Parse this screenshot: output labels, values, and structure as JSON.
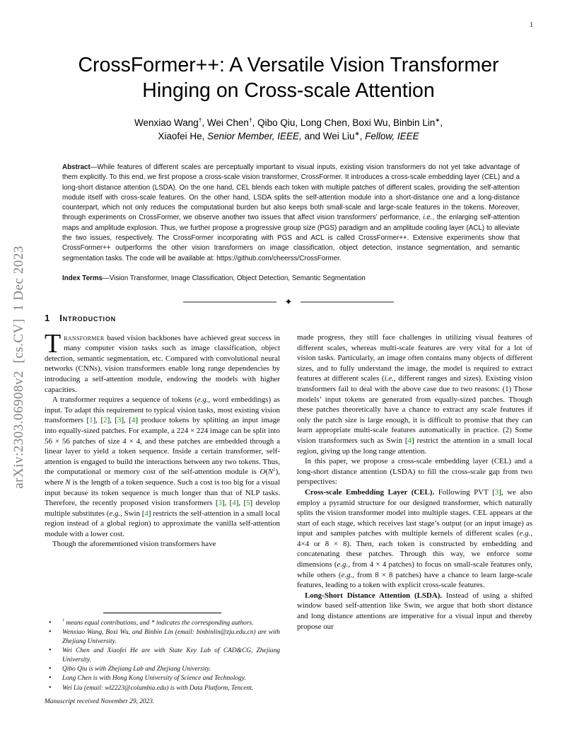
{
  "page": {
    "number": "1"
  },
  "arxiv_label": "arXiv:2303.06908v2  [cs.CV]  1 Dec 2023",
  "title": {
    "line1": "CrossFormer++: A Versatile Vision Transformer",
    "line2": "Hinging on Cross-scale Attention"
  },
  "authors": {
    "line1": [
      {
        "t": "Wenxiao Wang"
      },
      {
        "t": "†",
        "c": "sup"
      },
      {
        "t": ", Wei Chen"
      },
      {
        "t": "†",
        "c": "sup"
      },
      {
        "t": ", Qibo Qiu, Long Chen, Boxi Wu, Binbin Lin"
      },
      {
        "t": "∗",
        "c": "sup"
      },
      {
        "t": ","
      }
    ],
    "line2": [
      {
        "t": "Xiaofei He, "
      },
      {
        "t": "Senior Member, IEEE,",
        "c": "it"
      },
      {
        "t": " and Wei Liu"
      },
      {
        "t": "∗",
        "c": "sup"
      },
      {
        "t": ", "
      },
      {
        "t": "Fellow, IEEE",
        "c": "it"
      }
    ]
  },
  "abstract": {
    "segments": [
      {
        "t": "Abstract",
        "c": "b"
      },
      {
        "t": "—While features of different scales are perceptually important to visual inputs, existing vision transformers do not yet take advantage of them explicitly. To this end, we first propose a cross-scale vision transformer, CrossFormer. It introduces a cross-scale embedding layer (CEL) and a long-short distance attention (LSDA). On the one hand, CEL blends each token with multiple patches of different scales, providing the self-attention module itself with cross-scale features. On the other hand, LSDA splits the self-attention module into a short-distance one and a long-distance counterpart, which not only reduces the computational burden but also keeps both small-scale and large-scale features in the tokens. Moreover, through experiments on CrossFormer, we observe another two issues that affect vision transformers’ performance, "
      },
      {
        "t": "i.e.",
        "c": "it"
      },
      {
        "t": ", the enlarging self-attention maps and amplitude explosion. Thus, we further propose a progressive group size (PGS) paradigm and an amplitude cooling layer (ACL) to alleviate the two issues, respectively. The CrossFormer incorporating with PGS and ACL is called CrossFormer++. Extensive experiments show that CrossFormer++ outperforms the other vision transformers on image classification, object detection, instance segmentation, and semantic segmentation tasks. The code will be available at: https://github.com/cheerss/CrossFormer."
      }
    ]
  },
  "index_terms": {
    "segments": [
      {
        "t": "Index Terms",
        "c": "b"
      },
      {
        "t": "—Vision Transformer, Image Classification, Object Detection, Semantic Segmentation"
      }
    ]
  },
  "separator": {
    "diamond": "✦"
  },
  "section1": {
    "number": "1",
    "title": "Introduction"
  },
  "intro": {
    "p1": [
      {
        "t": "T",
        "c": "dropcap"
      },
      {
        "t": "ransformer",
        "c": "sc"
      },
      {
        "t": " based vision backbones have achieved great success in many computer vision tasks such as image classification, object detection, semantic segmentation, etc. Compared with convolutional neural networks (CNNs), vision transformers enable long range dependencies by introducing a self-attention module, endowing the models with higher capacities."
      }
    ],
    "p2": [
      {
        "t": "A transformer requires a sequence of tokens ("
      },
      {
        "t": "e.g.",
        "c": "it"
      },
      {
        "t": ", word embeddings) as input. To adapt this requirement to typical vision tasks, most existing vision transformers ["
      },
      {
        "t": "1",
        "c": "cite"
      },
      {
        "t": "], ["
      },
      {
        "t": "2",
        "c": "cite"
      },
      {
        "t": "], ["
      },
      {
        "t": "3",
        "c": "cite"
      },
      {
        "t": "], ["
      },
      {
        "t": "4",
        "c": "cite"
      },
      {
        "t": "] produce tokens by splitting an input image into equally-sized patches. For example, a 224 × 224 image can be split into 56 × 56 patches of size 4 × 4, and these patches are embedded through a linear layer to yield a token sequence. Inside a certain transformer, self-attention is engaged to build the interactions between any two tokens. Thus, the computational or memory cost of the self-attention module is "
      },
      {
        "t": "O",
        "c": "it"
      },
      {
        "t": "("
      },
      {
        "t": "N",
        "c": "it"
      },
      {
        "t": "2",
        "c": "sup"
      },
      {
        "t": "), where "
      },
      {
        "t": "N",
        "c": "it"
      },
      {
        "t": " is the length of a token sequence. Such a cost is too big for a visual input because its token sequence is much longer than that of NLP tasks. Therefore, the recently proposed vision transformers ["
      },
      {
        "t": "3",
        "c": "cite"
      },
      {
        "t": "], ["
      },
      {
        "t": "4",
        "c": "cite"
      },
      {
        "t": "], ["
      },
      {
        "t": "5",
        "c": "cite"
      },
      {
        "t": "] develop multiple substitutes ("
      },
      {
        "t": "e.g.",
        "c": "it"
      },
      {
        "t": ", Swin ["
      },
      {
        "t": "4",
        "c": "cite"
      },
      {
        "t": "] restricts the self-attention in a small local region instead of a global region) to approximate the vanilla self-attention module with a lower cost."
      }
    ],
    "p3": [
      {
        "t": "Though the aforementioned vision transformers have"
      }
    ],
    "p4": [
      {
        "t": "made progress, they still face challenges in utilizing visual features of different scales, whereas multi-scale features are very vital for a lot of vision tasks. Particularly, an image often contains many objects of different sizes, and to fully understand the image, the model is required to extract features at different scales ("
      },
      {
        "t": "i.e.",
        "c": "it"
      },
      {
        "t": ", different ranges and sizes). Existing vision transformers fail to deal with the above case due to two reasons: (1) Those models’ input tokens are generated from equally-sized patches. Though these patches theoretically have a chance to extract any scale features if only the patch size is large enough, it is difficult to promise that they can learn appropriate multi-scale features automatically in practice. (2) Some vision transformers such as Swin ["
      },
      {
        "t": "4",
        "c": "cite"
      },
      {
        "t": "] restrict the attention in a small local region, giving up the long range attention."
      }
    ],
    "p5": [
      {
        "t": "In this paper, we propose a cross-scale embedding layer (CEL) and a long-short distance attention (LSDA) to fill the cross-scale gap from two perspectives:"
      }
    ],
    "p6": [
      {
        "t": "Cross-scale Embedding Layer (CEL).",
        "c": "b"
      },
      {
        "t": " Following PVT ["
      },
      {
        "t": "3",
        "c": "cite"
      },
      {
        "t": "], we also employ a pyramid structure for our designed transformer, which naturally splits the vision transformer model into multiple stages. CEL appears at the start of each stage, which receives last stage’s output (or an input image) as input and samples patches with multiple kernels of different scales ("
      },
      {
        "t": "e.g.",
        "c": "it"
      },
      {
        "t": ", 4×4 or 8 × 8). Then, each token is constructed by embedding and concatenating these patches. Through this way, we enforce some dimensions ("
      },
      {
        "t": "e.g.",
        "c": "it"
      },
      {
        "t": ", from 4 × 4 patches) to focus on small-scale features only, while others ("
      },
      {
        "t": "e.g.",
        "c": "it"
      },
      {
        "t": ", from 8 × 8 patches) have a chance to learn large-scale features, leading to a token with explicit cross-scale features."
      }
    ],
    "p7": [
      {
        "t": "Long-Short Distance Attention (LSDA).",
        "c": "b"
      },
      {
        "t": " Instead of using a shifted window based self-attention like Swin, we argue that both short distance and long distance attentions are imperative for a visual input and thereby propose our"
      }
    ]
  },
  "footnotes": {
    "items": [
      [
        {
          "t": "†",
          "c": "sup"
        },
        {
          "t": " means equal contributions, and * indicates the corresponding authors."
        }
      ],
      [
        {
          "t": "Wenxiao Wang, Boxi Wu, and Binbin Lin (email: binbinlin@zju.edu.cn) are with Zhejiang University."
        }
      ],
      [
        {
          "t": "Wei Chen and Xiaofei He are with State Key Lab of CAD&CG, Zhejiang University."
        }
      ],
      [
        {
          "t": "Qibo Qiu is with Zhejiang Lab and Zhejiang University."
        }
      ],
      [
        {
          "t": "Long Chen is with Hong Kong University of Science and Technology."
        }
      ],
      [
        {
          "t": "Wei Liu (email: wl2223@columbia.edu) is with Data Platform, Tencent."
        }
      ]
    ],
    "manuscript": "Manuscript received November 29, 2023."
  },
  "colors": {
    "cite_green": "#00b300",
    "arxiv_gray": "#808080"
  }
}
